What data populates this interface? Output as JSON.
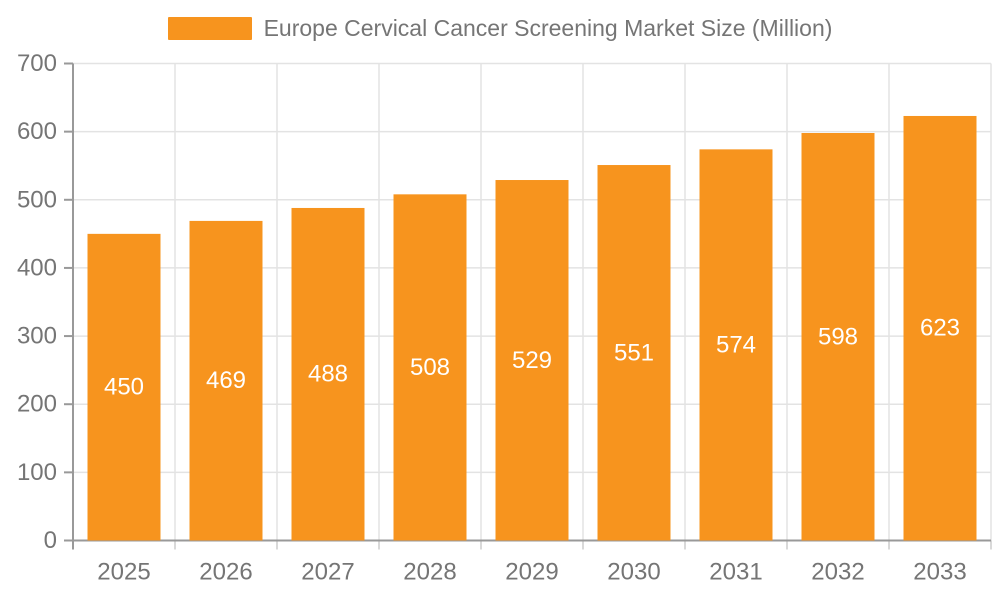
{
  "chart_data": {
    "type": "bar",
    "title": "Europe Cervical Cancer Screening Market Size (Million)",
    "categories": [
      "2025",
      "2026",
      "2027",
      "2028",
      "2029",
      "2030",
      "2031",
      "2032",
      "2033"
    ],
    "values": [
      450,
      469,
      488,
      508,
      529,
      551,
      574,
      598,
      623
    ],
    "xlabel": "",
    "ylabel": "",
    "ylim": [
      0,
      700
    ],
    "y_tick_step": 100,
    "y_ticks": [
      0,
      100,
      200,
      300,
      400,
      500,
      600,
      700
    ],
    "grid": true,
    "legend_position": "top-center",
    "value_labels": "inside-center"
  },
  "colors": {
    "bar": "#F7941E",
    "bar_value_label": "#FFFFFF",
    "axis_text": "#757575",
    "legend_text": "#757575",
    "gridline": "#E3E3E3",
    "axis_line": "#999999",
    "x_tick": "#CCCCCC",
    "background": "#FFFFFF"
  }
}
